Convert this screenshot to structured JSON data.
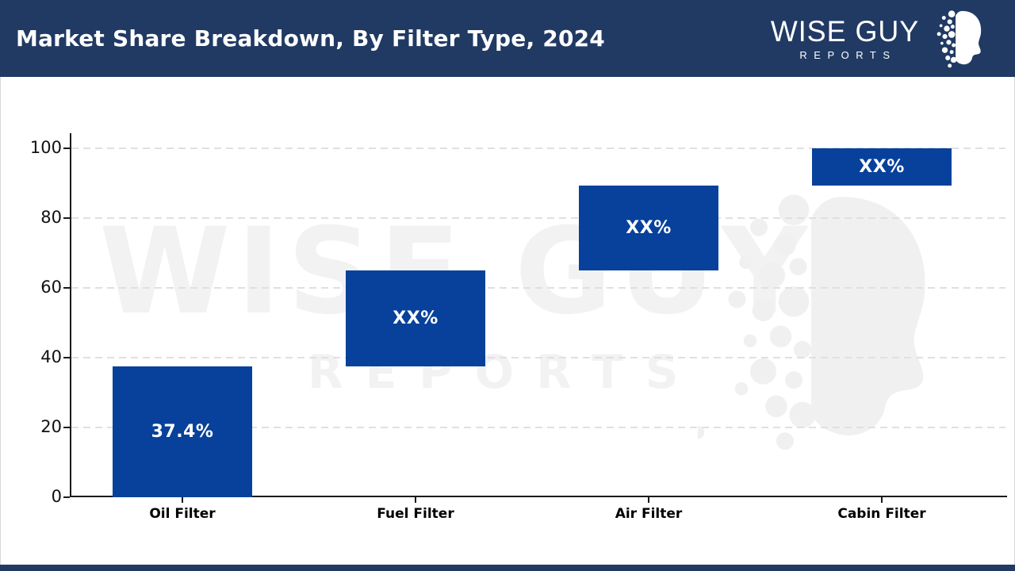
{
  "header": {
    "title": "Market Share Breakdown, By Filter Type, 2024",
    "logo": {
      "line1": "WISE GUY",
      "line2": "REPORTS"
    }
  },
  "watermark": {
    "line1": "WISE GUY",
    "line2": "REPORTS"
  },
  "colors": {
    "header_bg": "#213a64",
    "footer_bg": "#213a64",
    "bar": "#07419b",
    "bar_label": "#ffffff",
    "grid": "#e0e0e0",
    "axis": "#1a1a1a",
    "watermark": "#f2f2f2"
  },
  "chart_data": {
    "type": "bar",
    "subtype": "waterfall",
    "title": "Market Share Breakdown, By Filter Type, 2024",
    "categories": [
      "Oil Filter",
      "Fuel Filter",
      "Air Filter",
      "Cabin Filter"
    ],
    "segments": [
      {
        "category": "Oil Filter",
        "start": 0,
        "end": 37.4,
        "label": "37.4%"
      },
      {
        "category": "Fuel Filter",
        "start": 37.4,
        "end": 65.1,
        "label": "XX%"
      },
      {
        "category": "Air Filter",
        "start": 65.1,
        "end": 89.4,
        "label": "XX%"
      },
      {
        "category": "Cabin Filter",
        "start": 89.4,
        "end": 100,
        "label": "XX%"
      }
    ],
    "yticks": [
      0,
      20,
      40,
      60,
      80,
      100
    ],
    "ylim": [
      0,
      104
    ],
    "xlabel": "",
    "ylabel": "",
    "grid": "horizontal-dashed",
    "legend": "none"
  }
}
